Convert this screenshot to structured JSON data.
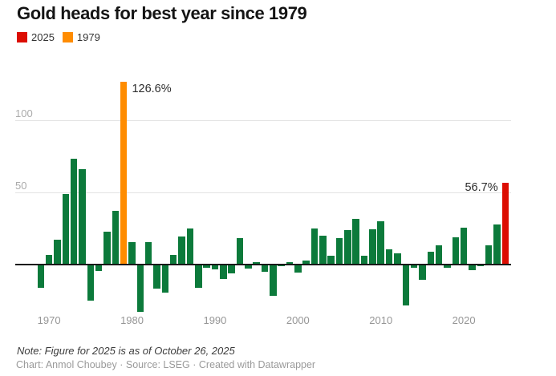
{
  "page": {
    "title": "Gold heads for best year since 1979",
    "note": "Note: Figure for 2025 is as of October 26, 2025",
    "credit": "Chart: Anmol Choubey · Source: LSEG · Created with Datawrapper"
  },
  "legend": {
    "items": [
      {
        "label": "2025",
        "color": "#dc0d02"
      },
      {
        "label": "1979",
        "color": "#ff8c00"
      }
    ]
  },
  "chart_data": {
    "type": "bar",
    "title": "Gold heads for best year since 1979",
    "unit": "%",
    "x": [
      1969,
      1970,
      1971,
      1972,
      1973,
      1974,
      1975,
      1976,
      1977,
      1978,
      1979,
      1980,
      1981,
      1982,
      1983,
      1984,
      1985,
      1986,
      1987,
      1988,
      1989,
      1990,
      1991,
      1992,
      1993,
      1994,
      1995,
      1996,
      1997,
      1998,
      1999,
      2000,
      2001,
      2002,
      2003,
      2004,
      2005,
      2006,
      2007,
      2008,
      2009,
      2010,
      2011,
      2012,
      2013,
      2014,
      2015,
      2016,
      2017,
      2018,
      2019,
      2020,
      2021,
      2022,
      2023,
      2024,
      2025
    ],
    "values": [
      -16,
      6,
      16.7,
      48.7,
      73,
      66,
      -24.8,
      -4.1,
      22.6,
      37,
      126.6,
      15.2,
      -32.6,
      14.9,
      -16.3,
      -19.4,
      6,
      19,
      24.5,
      -15.7,
      -2.2,
      -3.2,
      -9.8,
      -5.7,
      17.7,
      -2.5,
      1.2,
      -4.6,
      -21.4,
      -0.8,
      0.9,
      -5.5,
      2.5,
      24.8,
      19.4,
      5.5,
      18,
      23.2,
      31.1,
      5.8,
      24.2,
      29.7,
      10.2,
      7.1,
      -28,
      -2.2,
      -10.4,
      8.6,
      13.1,
      -1.9,
      18.3,
      25.1,
      -3.8,
      -0.3,
      13.1,
      27.2,
      56.7
    ],
    "bar_colors": {
      "default": "#0c7a3b",
      "1979": "#ff8c00",
      "2025": "#dc0d02"
    },
    "annotations": [
      {
        "x": 1979,
        "label": "126.6%",
        "side": "right"
      },
      {
        "x": 2025,
        "label": "56.7%",
        "side": "left"
      }
    ],
    "y_ticks": [
      50,
      100
    ],
    "x_ticks": [
      1970,
      1980,
      1990,
      2000,
      2010,
      2020
    ],
    "ylim": [
      -35,
      135
    ],
    "grid": "horizontal",
    "legend_position": "top-left"
  }
}
